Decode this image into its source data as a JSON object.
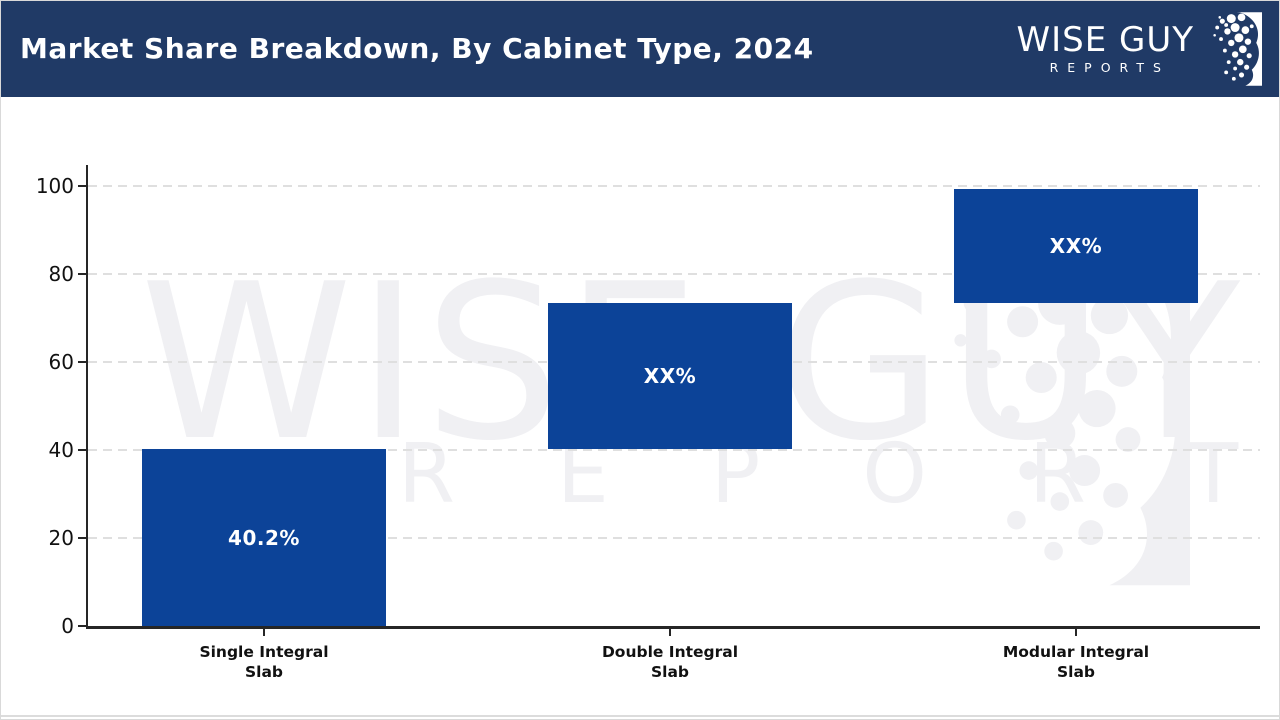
{
  "header": {
    "title": "Market Share Breakdown, By Cabinet Type, 2024",
    "logo": {
      "primary": "WISE GUY",
      "secondary": "REPORTS"
    }
  },
  "watermark": {
    "primary": "WISE GUY",
    "secondary": "REPORTS"
  },
  "chart_data": {
    "type": "bar",
    "subtype": "floating-waterfall",
    "title": "Market Share Breakdown, By Cabinet Type, 2024",
    "categories": [
      "Single Integral Slab",
      "Double Integral Slab",
      "Modular Integral Slab"
    ],
    "category_label_lines": [
      [
        "Single Integral",
        "Slab"
      ],
      [
        "Double Integral",
        "Slab"
      ],
      [
        "Modular Integral",
        "Slab"
      ]
    ],
    "bars": [
      {
        "category": "Single Integral Slab",
        "start": 0,
        "end": 40.2,
        "label": "40.2%"
      },
      {
        "category": "Double Integral Slab",
        "start": 40.2,
        "end": 73.4,
        "label": "XX%"
      },
      {
        "category": "Modular Integral Slab",
        "start": 73.4,
        "end": 99.4,
        "label": "XX%"
      }
    ],
    "xlabel": "",
    "ylabel": "",
    "yticks": [
      0,
      20,
      40,
      60,
      80,
      100
    ],
    "ylim": [
      0,
      105
    ],
    "grid": {
      "horizontal": true,
      "style": "dashed"
    },
    "legend": "none",
    "colors": {
      "bar": "#0c4398",
      "bar_label_text": "#ffffff",
      "axis": "#262626",
      "gridline": "#dfdfdf",
      "header_bg": "#203a66",
      "header_text": "#ffffff",
      "watermark": "#f0f0f3"
    }
  }
}
